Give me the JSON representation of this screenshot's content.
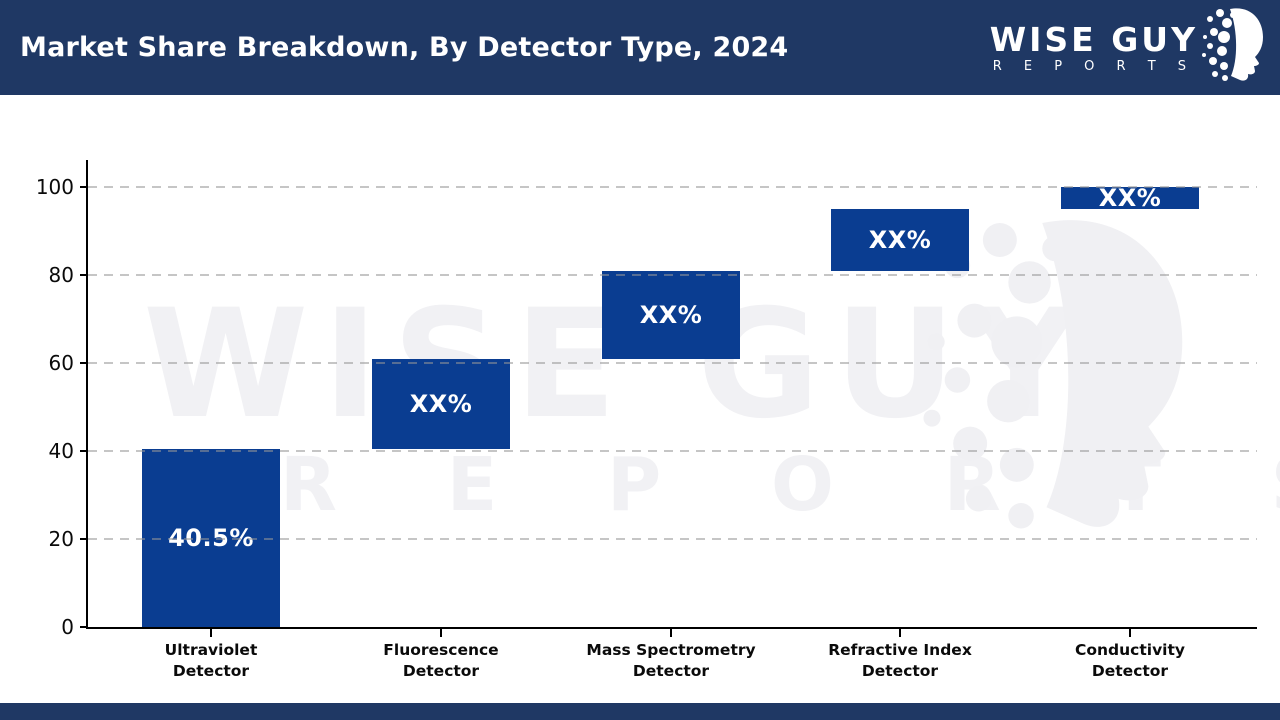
{
  "header": {
    "title": "Market Share Breakdown, By Detector Type, 2024",
    "logo": {
      "name": "WISE GUY",
      "sub": "R E P O R T S"
    }
  },
  "watermark": {
    "line1": "WISE GUY",
    "line2": "R E P O R T S"
  },
  "footer": {},
  "colors": {
    "header_bg": "#1f3864",
    "footer_bg": "#1f3864",
    "bar": "#0a3d91",
    "bar_label": "#ffffff",
    "axis": "#000000",
    "grid": "#bdbdbd",
    "watermark": "#f1f1f4"
  },
  "chart_data": {
    "type": "bar",
    "subtype": "waterfall",
    "title": "Market Share Breakdown, By Detector Type, 2024",
    "unit": "%",
    "ylim": [
      0,
      100
    ],
    "yticks": [
      0,
      20,
      40,
      60,
      80,
      100
    ],
    "grid": "horizontal-dashed",
    "legend": "none",
    "categories": [
      "Ultraviolet Detector",
      "Fluorescence Detector",
      "Mass Spectrometry Detector",
      "Refractive Index Detector",
      "Conductivity Detector"
    ],
    "category_lines": [
      [
        "Ultraviolet",
        "Detector"
      ],
      [
        "Fluorescence",
        "Detector"
      ],
      [
        "Mass Spectrometry",
        "Detector"
      ],
      [
        "Refractive Index",
        "Detector"
      ],
      [
        "Conductivity",
        "Detector"
      ]
    ],
    "bars": [
      {
        "category": "Ultraviolet Detector",
        "start": 0,
        "end": 40.5,
        "value": 40.5,
        "label": "40.5%"
      },
      {
        "category": "Fluorescence Detector",
        "start": 40.5,
        "end": 61,
        "value": 20.5,
        "label": "XX%"
      },
      {
        "category": "Mass Spectrometry Detector",
        "start": 61,
        "end": 81,
        "value": 20,
        "label": "XX%"
      },
      {
        "category": "Refractive Index Detector",
        "start": 81,
        "end": 95,
        "value": 14,
        "label": "XX%"
      },
      {
        "category": "Conductivity Detector",
        "start": 95,
        "end": 100,
        "value": 5,
        "label": "XX%"
      }
    ]
  }
}
